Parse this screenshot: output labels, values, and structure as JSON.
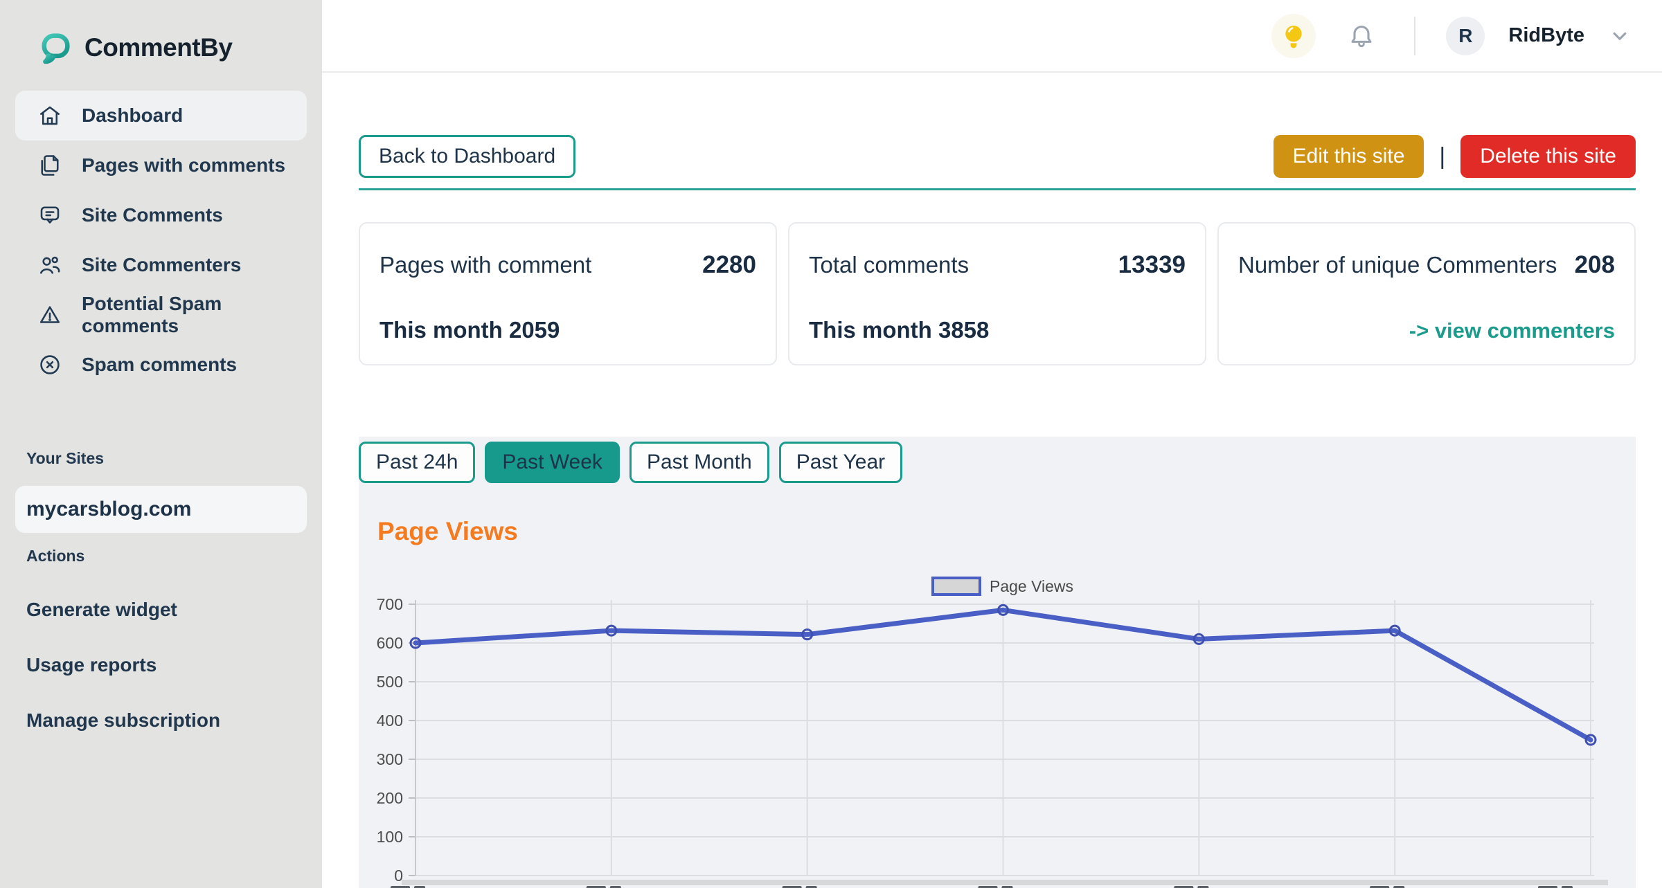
{
  "brand": {
    "name": "CommentBy"
  },
  "header": {
    "user_initial": "R",
    "user_name": "RidByte"
  },
  "sidebar": {
    "items": [
      {
        "label": "Dashboard",
        "icon": "home-icon",
        "active": true
      },
      {
        "label": "Pages with comments",
        "icon": "pages-icon",
        "active": false
      },
      {
        "label": "Site Comments",
        "icon": "comment-icon",
        "active": false
      },
      {
        "label": "Site Commenters",
        "icon": "users-icon",
        "active": false
      },
      {
        "label": "Potential Spam comments",
        "icon": "warning-icon",
        "active": false
      },
      {
        "label": "Spam comments",
        "icon": "circle-x-icon",
        "active": false
      }
    ],
    "sections": {
      "your_sites": "Your Sites",
      "actions": "Actions"
    },
    "site": "mycarsblog.com",
    "action_items": [
      {
        "label": "Generate widget"
      },
      {
        "label": "Usage reports"
      },
      {
        "label": "Manage subscription"
      }
    ]
  },
  "toolbar": {
    "back_label": "Back to Dashboard",
    "edit_label": "Edit this site",
    "separator": "|",
    "delete_label": "Delete this site"
  },
  "stats": [
    {
      "label": "Pages with comment",
      "value": "2280",
      "sub": "This month 2059"
    },
    {
      "label": "Total comments",
      "value": "13339",
      "sub": "This month 3858"
    },
    {
      "label": "Number of unique Commenters",
      "value": "208",
      "link": "-> view commenters"
    }
  ],
  "range_tabs": [
    {
      "label": "Past 24h",
      "active": false
    },
    {
      "label": "Past Week",
      "active": true
    },
    {
      "label": "Past Month",
      "active": false
    },
    {
      "label": "Past Year",
      "active": false
    }
  ],
  "chart_data": {
    "type": "line",
    "title": "Page Views",
    "series": [
      {
        "name": "Page Views",
        "color": "#4a5fc5",
        "values": [
          600,
          632,
          622,
          685,
          610,
          632,
          350
        ]
      }
    ],
    "ylim": [
      0,
      700
    ],
    "y_ticks": [
      0,
      100,
      200,
      300,
      400,
      500,
      600,
      700
    ],
    "grid": true,
    "legend_position": "top-center",
    "x_tick_labels": [
      "",
      "",
      "",
      "",
      "",
      "",
      ""
    ]
  },
  "colors": {
    "brand_teal": "#1b9a8e",
    "active_tab_teal": "#179a8c",
    "divider_teal": "#2aa298",
    "edit_gold": "#cf9213",
    "delete_red": "#e12b26",
    "title_orange": "#f47b20",
    "link_teal": "#1a9c8c",
    "chart_line_blue": "#4a5fc5",
    "bulb_yellow": "#f4c713",
    "sidebar_gray": "#e3e3e1",
    "panel_gray": "#f1f2f5"
  }
}
